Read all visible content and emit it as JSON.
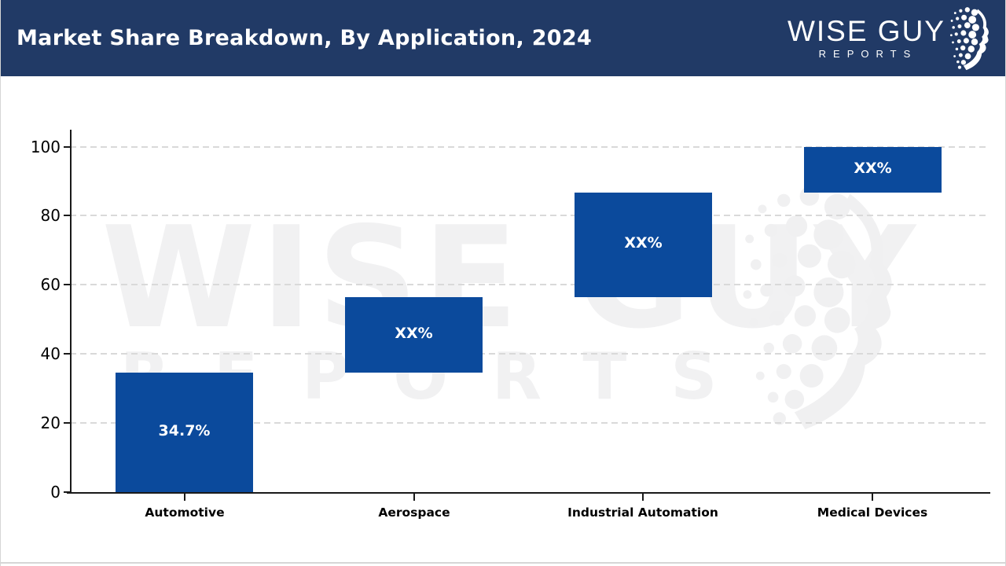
{
  "header": {
    "title": "Market Share Breakdown, By Application, 2024",
    "logo": {
      "line1": "WISE GUY",
      "line2": "REPORTS"
    }
  },
  "watermark": {
    "line1": "WISE GUY",
    "line2": "REPORTS"
  },
  "chart_data": {
    "type": "bar",
    "subtype": "waterfall",
    "title": "Market Share Breakdown, By Application, 2024",
    "categories": [
      "Automotive",
      "Aerospace",
      "Industrial Automation",
      "Medical Devices"
    ],
    "segments": [
      {
        "category": "Automotive",
        "start": 0,
        "end": 34.7,
        "label": "34.7%"
      },
      {
        "category": "Aerospace",
        "start": 34.7,
        "end": 56.5,
        "label": "XX%"
      },
      {
        "category": "Industrial Automation",
        "start": 56.5,
        "end": 86.7,
        "label": "XX%"
      },
      {
        "category": "Medical Devices",
        "start": 86.7,
        "end": 100,
        "label": "XX%"
      }
    ],
    "xlabel": "",
    "ylabel": "",
    "ylim": [
      0,
      104
    ],
    "yticks": [
      0,
      20,
      40,
      60,
      80,
      100
    ],
    "grid": true,
    "grid_style": "dashed",
    "legend_position": "none",
    "bar_color": "#0b4a9c",
    "bar_label_color": "#ffffff"
  },
  "colors": {
    "header_bg": "#213a66",
    "bar": "#0b4a9c",
    "grid": "#d9d9d9",
    "axis": "#1a1a1a",
    "watermark": "#f1f1f2",
    "page_border": "#d6d6d6"
  }
}
